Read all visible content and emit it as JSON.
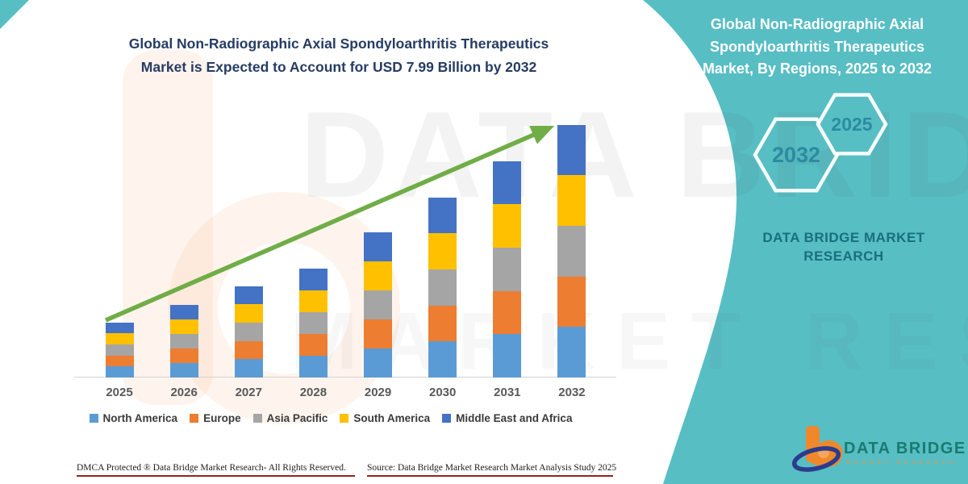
{
  "colors": {
    "teal_panel": "#57bec4",
    "title_navy": "#263c63",
    "arrow_green": "#70AD47",
    "hex_label_teal": "#2c8ba0",
    "panel_brand_teal": "#196f7e",
    "logo_orange": "#f0882b",
    "logo_navy": "#2c3b8e",
    "logo_text_teal": "#1b7a6f",
    "footer_underline_red": "#8d2626",
    "year_label_gray": "#595959"
  },
  "chart_data": {
    "type": "bar",
    "stacked": true,
    "title": "Global Non-Radiographic Axial Spondyloarthritis Therapeutics Market is Expected to Account for USD 7.99 Billion by 2032",
    "title_lines": [
      "Global Non-Radiographic Axial Spondyloarthritis Therapeutics",
      "Market is Expected to Account for USD 7.99 Billion by 2032"
    ],
    "categories": [
      "2025",
      "2026",
      "2027",
      "2028",
      "2029",
      "2030",
      "2031",
      "2032"
    ],
    "series": [
      {
        "name": "North America",
        "color": "#5B9BD5",
        "values": [
          0.35,
          0.46,
          0.58,
          0.69,
          0.92,
          1.14,
          1.37,
          1.6
        ]
      },
      {
        "name": "Europe",
        "color": "#ED7D31",
        "values": [
          0.35,
          0.46,
          0.58,
          0.69,
          0.92,
          1.14,
          1.37,
          1.6
        ]
      },
      {
        "name": "Asia Pacific",
        "color": "#A5A5A5",
        "values": [
          0.35,
          0.46,
          0.58,
          0.69,
          0.92,
          1.14,
          1.37,
          1.6
        ]
      },
      {
        "name": "South America",
        "color": "#FFC000",
        "values": [
          0.35,
          0.46,
          0.58,
          0.69,
          0.92,
          1.14,
          1.37,
          1.6
        ]
      },
      {
        "name": "Middle East and Africa",
        "color": "#4472C4",
        "values": [
          0.35,
          0.46,
          0.58,
          0.69,
          0.92,
          1.14,
          1.37,
          1.6
        ]
      }
    ],
    "totals_estimated_usd_billion": [
      1.75,
      2.3,
      2.9,
      3.45,
      4.6,
      5.7,
      6.85,
      7.99
    ],
    "xlabel": "",
    "ylabel": "",
    "ylim": [
      0,
      8.17
    ],
    "grid": false,
    "legend_position": "bottom",
    "annotations": [
      "upward green trend arrow across bars"
    ]
  },
  "right_panel": {
    "heading_lines": [
      "Global Non-Radiographic Axial",
      "Spondyloarthritis Therapeutics",
      "Market, By Regions, 2025 to 2032"
    ],
    "hex_large_label": "2032",
    "hex_small_label": "2025",
    "brand_line1": "DATA BRIDGE MARKET",
    "brand_line2": "RESEARCH"
  },
  "logo": {
    "name_text": "DATA BRIDGE",
    "sub_text": "MARKET RESEARCH"
  },
  "footer": {
    "dmca": "DMCA Protected ® Data Bridge Market Research- All Rights Reserved.",
    "source": "Source: Data Bridge Market Research Market Analysis Study 2025"
  },
  "watermark": {
    "row1": "DATA BRIDGE",
    "row2": "MARKET RESEARCH"
  }
}
